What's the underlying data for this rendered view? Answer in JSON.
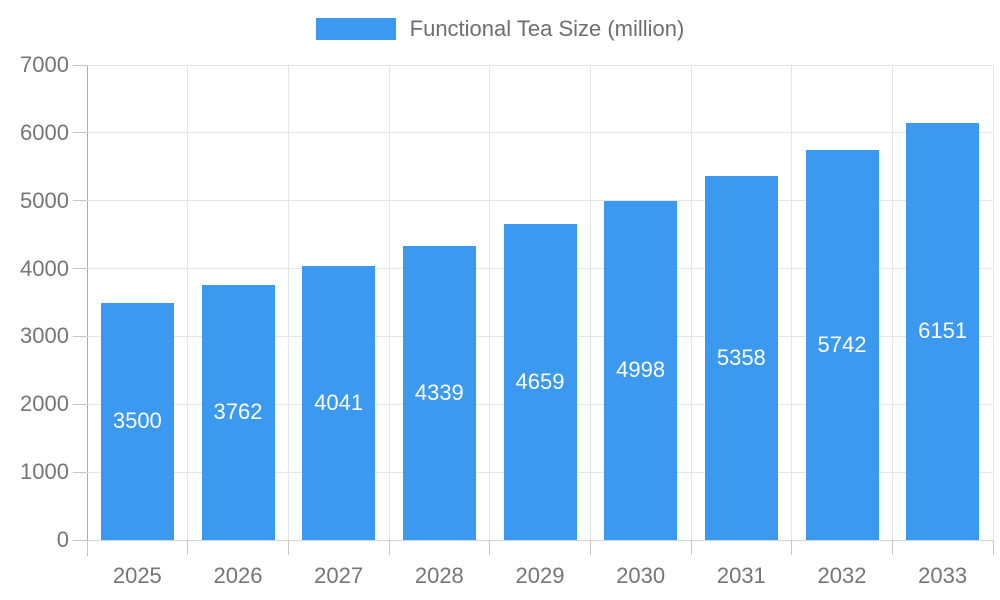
{
  "legend": {
    "label": "Functional Tea Size (million)"
  },
  "chart_data": {
    "type": "bar",
    "title": "",
    "xlabel": "",
    "ylabel": "",
    "categories": [
      "2025",
      "2026",
      "2027",
      "2028",
      "2029",
      "2030",
      "2031",
      "2032",
      "2033"
    ],
    "series": [
      {
        "name": "Functional Tea Size (million)",
        "values": [
          3500,
          3762,
          4041,
          4339,
          4659,
          4998,
          5358,
          5742,
          6151
        ]
      }
    ],
    "ylim": [
      0,
      7000
    ],
    "ytick_step": 1000,
    "yticks": [
      0,
      1000,
      2000,
      3000,
      4000,
      5000,
      6000,
      7000
    ],
    "grid": true,
    "legend_position": "top-center",
    "value_labels_position": "inside-middle"
  },
  "colors": {
    "bar": "#3B99F0",
    "value_label_text": "#ffffff",
    "axis_line": "#ababab",
    "grid_line": "#e6e6e6",
    "baseline": "#d4d4d4",
    "tick": "#c6c6c6",
    "axis_text": "#757575",
    "legend_text": "#6e6e6e",
    "background": "#ffffff"
  }
}
